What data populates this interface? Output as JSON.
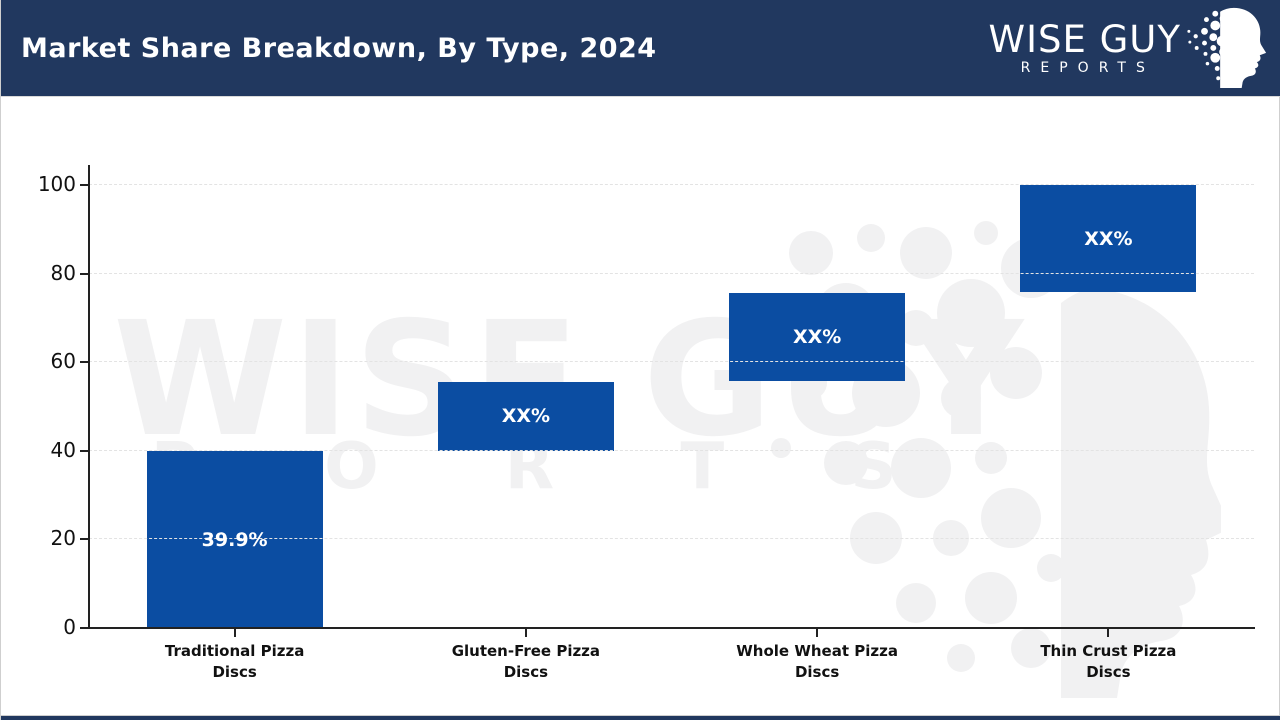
{
  "header": {
    "title": "Market Share Breakdown, By Type, 2024",
    "logo_line1": "WISE GUY",
    "logo_line2": "REPORTS",
    "bg_color": "#21385F",
    "text_color": "#FFFFFF"
  },
  "watermark": {
    "line1": "WISE GUY",
    "line2": "P O R T S"
  },
  "chart_data": {
    "type": "bar",
    "subtype": "floating-waterfall",
    "title": "Market Share Breakdown, By Type, 2024",
    "categories": [
      "Traditional Pizza\nDiscs",
      "Gluten-Free Pizza\nDiscs",
      "Whole Wheat Pizza\nDiscs",
      "Thin Crust Pizza\nDiscs"
    ],
    "bars": [
      {
        "start": 0,
        "end": 39.9,
        "label": "39.9%"
      },
      {
        "start": 40,
        "end": 55.5,
        "label": "XX%"
      },
      {
        "start": 55.7,
        "end": 75.7,
        "label": "XX%"
      },
      {
        "start": 75.8,
        "end": 100,
        "label": "XX%"
      }
    ],
    "xlabel": "",
    "ylabel": "",
    "ylim": [
      0,
      100
    ],
    "yticks": [
      "0",
      "20",
      "40",
      "60",
      "80",
      "100"
    ],
    "grid": "horizontal-dashed",
    "legend": "none",
    "bar_color": "#0B4DA2",
    "bar_label_color": "#FFFFFF"
  }
}
